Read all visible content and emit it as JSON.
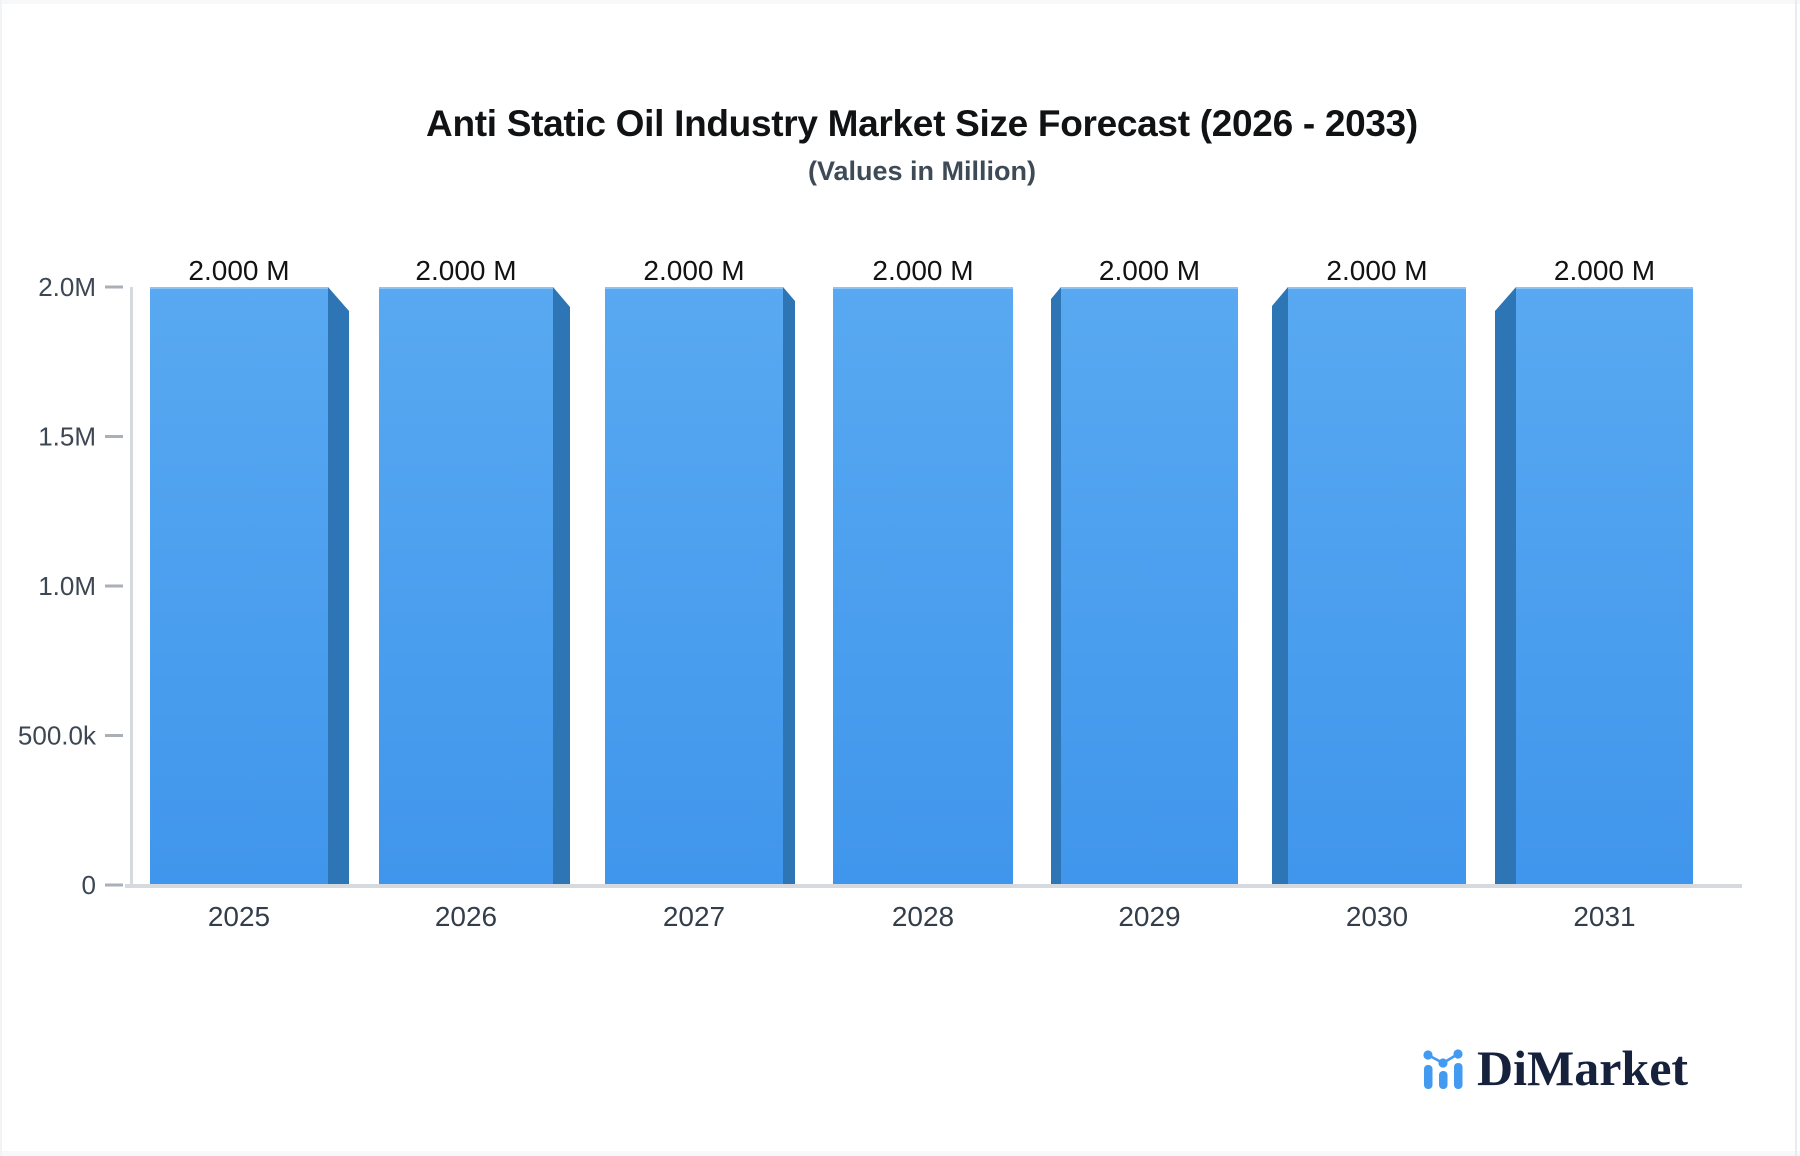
{
  "chart_data": {
    "type": "bar",
    "title": "Anti Static Oil Industry Market Size Forecast (2026 - 2033)",
    "subtitle": "(Values in Million)",
    "categories": [
      "2025",
      "2026",
      "2027",
      "2028",
      "2029",
      "2030",
      "2031"
    ],
    "values": [
      2000000,
      2000000,
      2000000,
      2000000,
      2000000,
      2000000,
      2000000
    ],
    "bar_value_labels": [
      "2.000 M",
      "2.000 M",
      "2.000 M",
      "2.000 M",
      "2.000 M",
      "2.000 M",
      "2.000 M"
    ],
    "unit": "Million",
    "xlabel": "",
    "ylabel": "",
    "ylim": [
      0,
      2000000
    ],
    "yticks": [
      {
        "label": "2.0M",
        "value": 2000000
      },
      {
        "label": "1.5M",
        "value": 1500000
      },
      {
        "label": "1.0M",
        "value": 1000000
      },
      {
        "label": "500.0k",
        "value": 500000
      },
      {
        "label": "0",
        "value": 0
      }
    ],
    "grid": "off",
    "legend": "none",
    "style": "3d-perspective-bars",
    "colors": {
      "bar_face_top": "#58a9f1",
      "bar_face_bottom": "#4096ec",
      "bar_side": "#2e75b5",
      "axis_line": "#d6dade",
      "tick_dash": "#aab0b8",
      "tick_label": "#3d4754",
      "value_label": "#121212",
      "category_label": "#333e4a",
      "title": "#101214",
      "subtitle": "#3f4a57"
    }
  },
  "branding": {
    "name": "DiMarket",
    "icon": "bar-line-chart-icon",
    "icon_color": "#429bf0",
    "text_color": "#16213c"
  }
}
